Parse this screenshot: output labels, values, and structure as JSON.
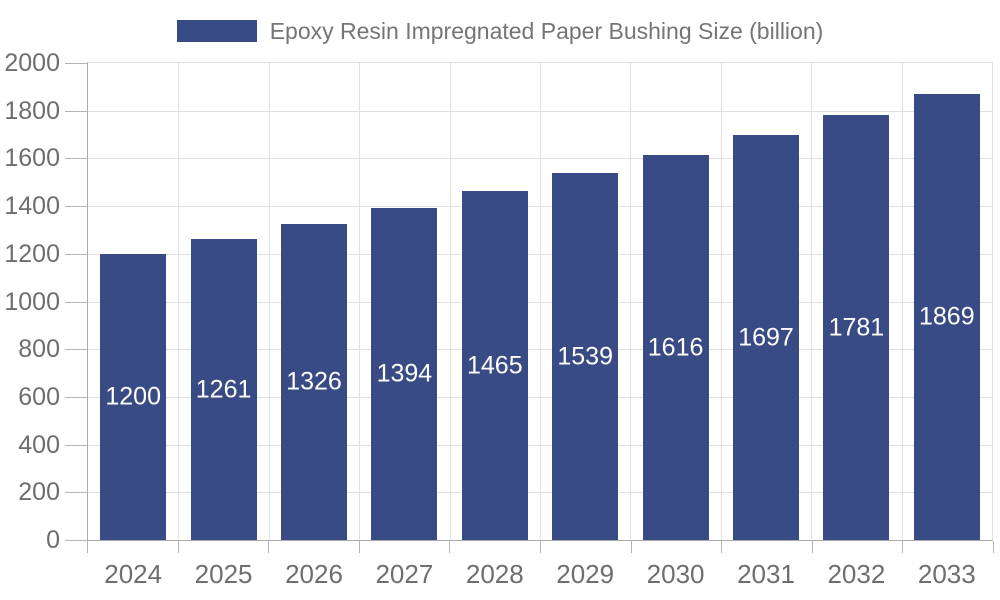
{
  "chart_data": {
    "type": "bar",
    "title": "Epoxy Resin Impregnated Paper Bushing Size (billion)",
    "legend_label": "Epoxy Resin Impregnated Paper Bushing Size (billion)",
    "legend_position": "top",
    "categories": [
      "2024",
      "2025",
      "2026",
      "2027",
      "2028",
      "2029",
      "2030",
      "2031",
      "2032",
      "2033"
    ],
    "series": [
      {
        "name": "Epoxy Resin Impregnated Paper Bushing Size (billion)",
        "values": [
          1200,
          1261,
          1326,
          1394,
          1465,
          1539,
          1616,
          1697,
          1781,
          1869
        ]
      }
    ],
    "values": [
      1200,
      1261,
      1326,
      1394,
      1465,
      1539,
      1616,
      1697,
      1781,
      1869
    ],
    "xlabel": "",
    "ylabel": "",
    "ylim": [
      0,
      2000
    ],
    "ytick_step": 200,
    "grid": true,
    "colors": {
      "bar": "#394B84",
      "value_label": "#FFFFFF",
      "axis_text": "#6E6E6E",
      "legend_text": "#757575",
      "grid_line": "#E0E0E0",
      "axis_line": "#ABABAB",
      "tick_line": "#B5B5B5",
      "background": "#FFFFFF"
    }
  }
}
